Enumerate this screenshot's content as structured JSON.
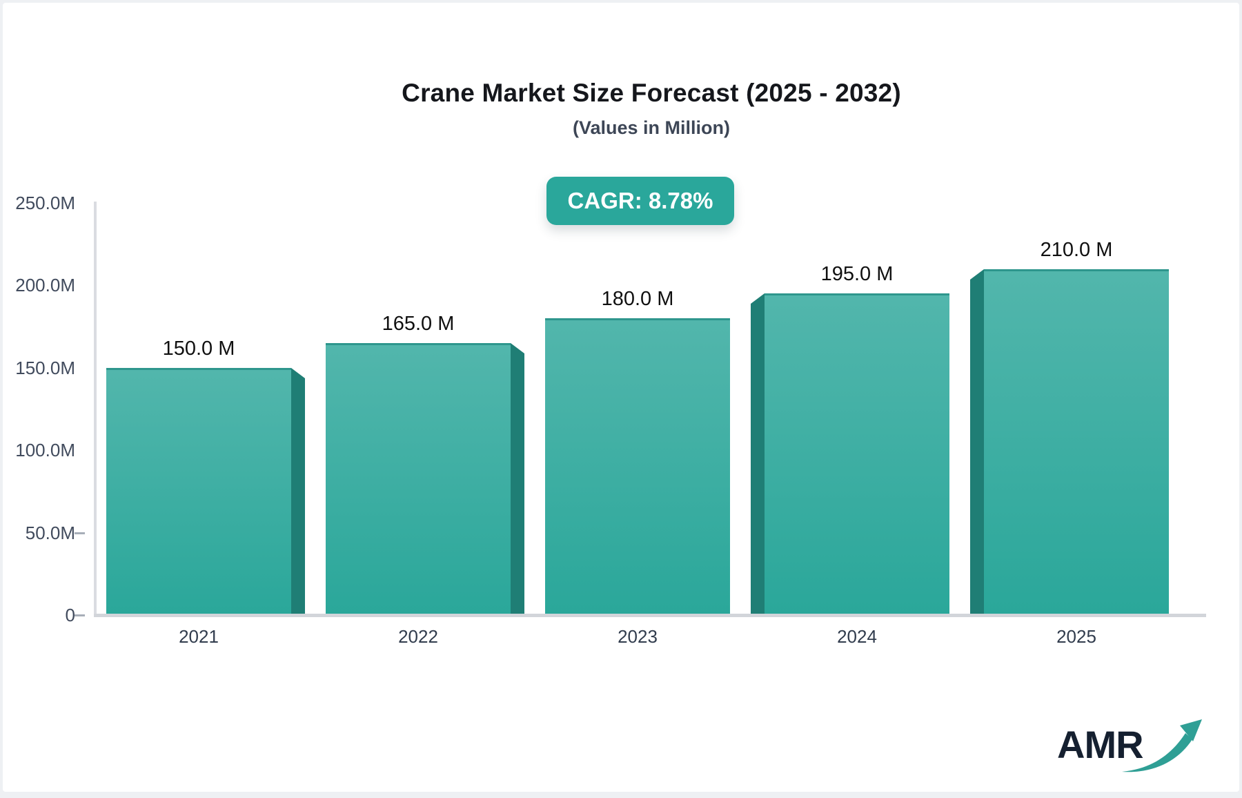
{
  "header": {
    "title": "Crane Market Size Forecast (2025 - 2032)",
    "subtitle": "(Values in Million)",
    "cagr_badge": "CAGR: 8.78%"
  },
  "chart_data": {
    "type": "bar",
    "title": "Crane Market Size Forecast (2025 - 2032)",
    "subtitle": "(Values in Million)",
    "categories": [
      "2021",
      "2022",
      "2023",
      "2024",
      "2025"
    ],
    "values": [
      150.0,
      165.0,
      180.0,
      195.0,
      210.0
    ],
    "unit": "Million",
    "bar_labels": [
      "150.0 M",
      "165.0 M",
      "180.0 M",
      "195.0 M",
      "210.0 M"
    ],
    "cagr_pct": 8.78,
    "y_ticks": [
      "250.0M",
      "200.0M",
      "150.0M",
      "100.0M",
      "50.0M",
      "0"
    ],
    "y_tick_dashes": [
      "50.0M",
      "0"
    ],
    "ylim": [
      0,
      250
    ],
    "grid": false,
    "legend": false,
    "bar_color_top": "#52b6ac",
    "bar_color_bottom": "#2aa79a",
    "bar_side_color": "#1f7e75",
    "badge_color": "#2aa79b"
  },
  "logo": {
    "text": "AMR",
    "arrow_icon": "trend-arrow",
    "text_color": "#152030",
    "arrow_color": "#2f9f95"
  }
}
